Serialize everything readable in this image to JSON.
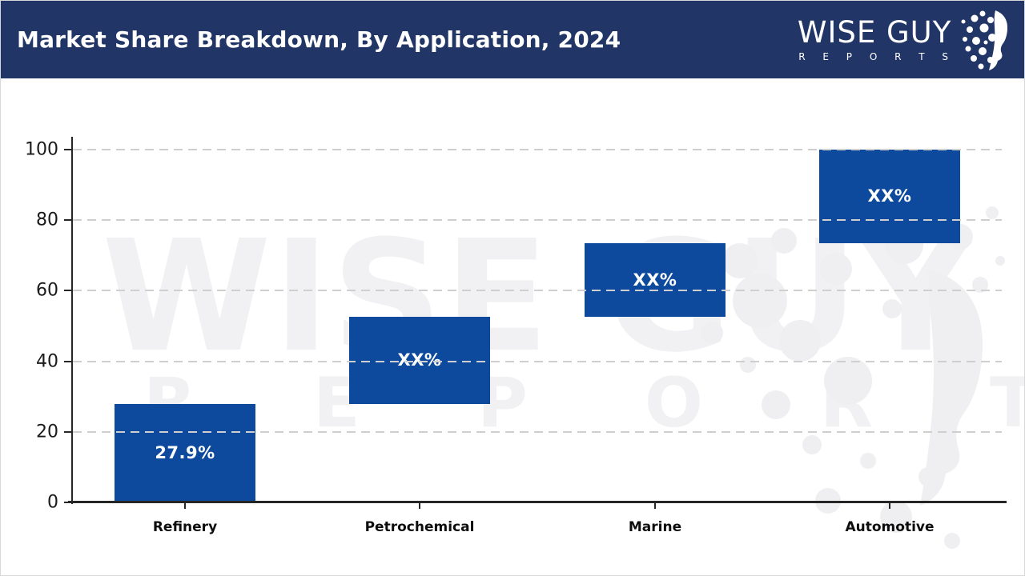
{
  "header": {
    "title": "Market Share Breakdown, By Application, 2024",
    "bg_color": "#213666",
    "logo": {
      "line1": "WISE GUY",
      "line2": "R E P O R T S"
    }
  },
  "watermark": {
    "line1": "WISE GUY",
    "line2": "R E P O R T S",
    "color": "#f1f1f3"
  },
  "chart_data": {
    "type": "bar",
    "variant": "waterfall",
    "title": "Market Share Breakdown, By Application, 2024",
    "categories": [
      "Refinery",
      "Petrochemical",
      "Marine",
      "Automotive"
    ],
    "bars": [
      {
        "category": "Refinery",
        "start": 0,
        "end": 27.9,
        "size": 27.9,
        "label": "27.9%"
      },
      {
        "category": "Petrochemical",
        "start": 27.9,
        "end": 52.6,
        "size": 24.7,
        "label": "XX%"
      },
      {
        "category": "Marine",
        "start": 52.6,
        "end": 73.5,
        "size": 20.9,
        "label": "XX%"
      },
      {
        "category": "Automotive",
        "start": 73.5,
        "end": 100,
        "size": 26.5,
        "label": "XX%"
      }
    ],
    "y_ticks": [
      0,
      20,
      40,
      60,
      80,
      100
    ],
    "ylim": [
      0,
      103.6
    ],
    "xlabel": "",
    "ylabel": "",
    "grid": true,
    "grid_style": "dashed",
    "legend": false,
    "bar_color": "#0d4a9e",
    "value_label_color": "#ffffff"
  }
}
